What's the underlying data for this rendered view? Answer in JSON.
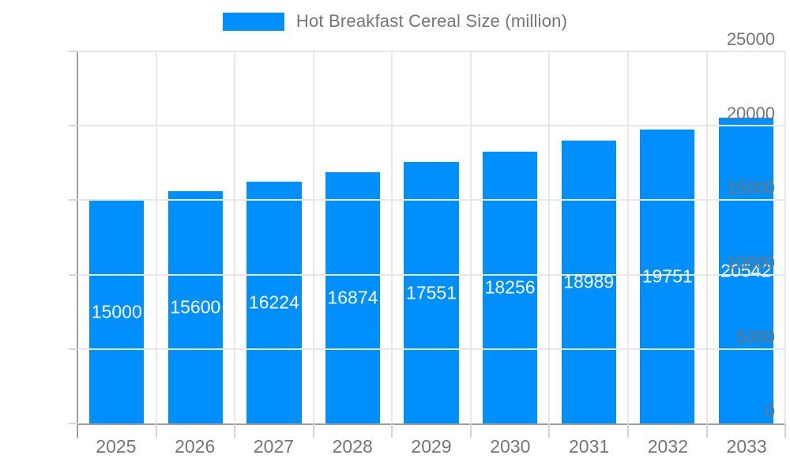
{
  "chart_data": {
    "type": "bar",
    "title": "Hot Breakfast Cereal Size (million)",
    "categories": [
      "2025",
      "2026",
      "2027",
      "2028",
      "2029",
      "2030",
      "2031",
      "2032",
      "2033"
    ],
    "values": [
      15000,
      15600,
      16224,
      16874,
      17551,
      18256,
      18989,
      19751,
      20542
    ],
    "xlabel": "",
    "ylabel": "",
    "ylim": [
      0,
      25000
    ],
    "yticks": [
      0,
      5000,
      10000,
      15000,
      20000,
      25000
    ],
    "grid": "on",
    "legend_position": "top-center",
    "data_labels": "centered-white"
  },
  "colors": {
    "bar": "#008FFB",
    "axis_text": "#757575",
    "axis_line": "#9e9e9e",
    "gridline": "#e8e8e8",
    "data_label": "#ffffff",
    "background": "#ffffff"
  }
}
